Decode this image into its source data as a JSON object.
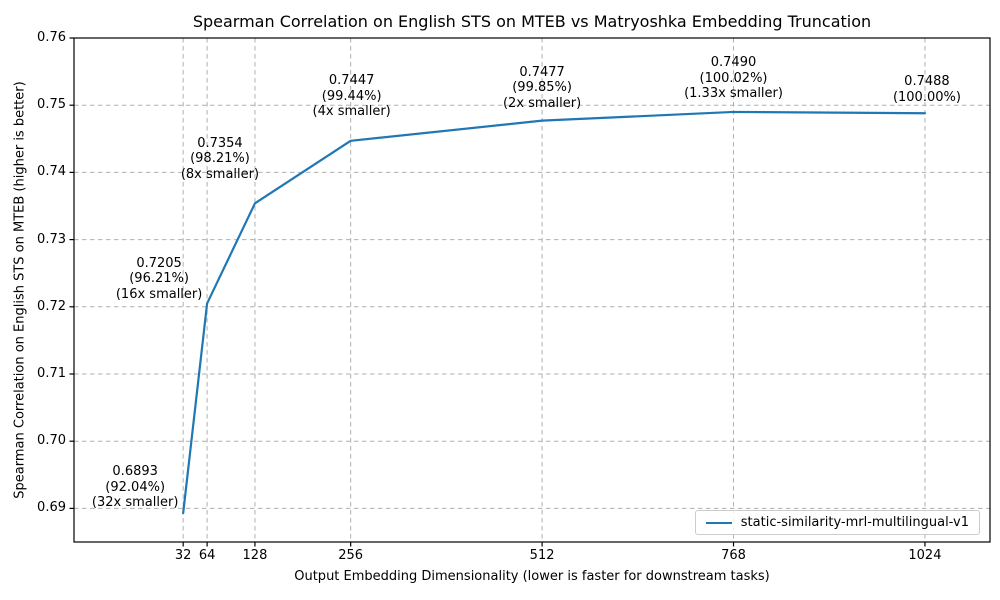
{
  "chart_data": {
    "type": "line",
    "title": "Spearman Correlation on English STS on MTEB vs Matryoshka Embedding Truncation",
    "xlabel": "Output Embedding Dimensionality (lower is faster for downstream tasks)",
    "ylabel": "Spearman Correlation on English STS on MTEB (higher is better)",
    "series": [
      {
        "name": "static-similarity-mrl-multilingual-v1",
        "color": "#1f77b4",
        "x": [
          32,
          64,
          128,
          256,
          512,
          768,
          1024
        ],
        "y": [
          0.6893,
          0.7205,
          0.7354,
          0.7447,
          0.7477,
          0.749,
          0.7488
        ]
      }
    ],
    "annotations": [
      {
        "x": 32,
        "y": 0.6893,
        "lines": [
          "0.6893",
          "(92.04%)",
          "(32x smaller)"
        ],
        "offset": [
          -48,
          -41
        ]
      },
      {
        "x": 64,
        "y": 0.7205,
        "lines": [
          "0.7205",
          "(96.21%)",
          "(16x smaller)"
        ],
        "offset": [
          -48,
          -40
        ]
      },
      {
        "x": 128,
        "y": 0.7354,
        "lines": [
          "0.7354",
          "(98.21%)",
          "(8x smaller)"
        ],
        "offset": [
          -35,
          -60
        ]
      },
      {
        "x": 256,
        "y": 0.7447,
        "lines": [
          "0.7447",
          "(99.44%)",
          "(4x smaller)"
        ],
        "offset": [
          1,
          -60
        ]
      },
      {
        "x": 512,
        "y": 0.7477,
        "lines": [
          "0.7477",
          "(99.85%)",
          "(2x smaller)"
        ],
        "offset": [
          0,
          -48
        ]
      },
      {
        "x": 768,
        "y": 0.749,
        "lines": [
          "0.7490",
          "(100.02%)",
          "(1.33x smaller)"
        ],
        "offset": [
          0,
          -49
        ]
      },
      {
        "x": 1024,
        "y": 0.7488,
        "lines": [
          "0.7488",
          "(100.00%)"
        ],
        "offset": [
          2,
          -31
        ]
      }
    ],
    "xticks": [
      32,
      64,
      128,
      256,
      512,
      768,
      1024
    ],
    "yticks": [
      "0.69",
      "0.70",
      "0.71",
      "0.72",
      "0.73",
      "0.74",
      "0.75",
      "0.76"
    ],
    "xlim": [
      -114,
      1111
    ],
    "ylim": [
      0.685,
      0.76
    ],
    "grid": true,
    "legend_position": "lower right"
  },
  "colors": {
    "line": "#1f77b4",
    "grid": "#b0b0b0",
    "spine": "#000000",
    "text": "#000000"
  }
}
